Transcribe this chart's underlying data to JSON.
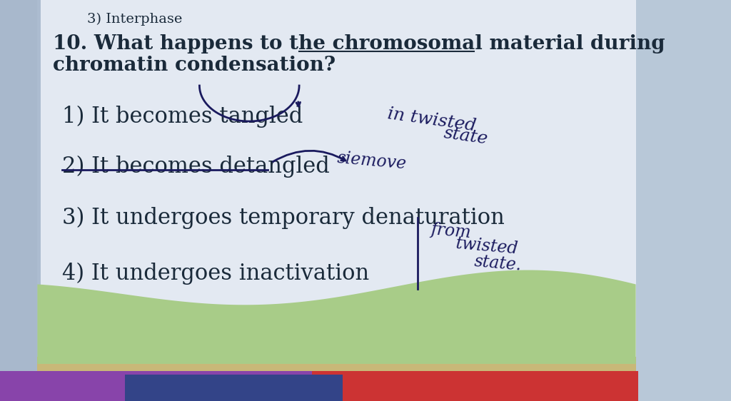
{
  "bg_color": "#b8c8d8",
  "page_color": "#dde5ee",
  "page_color2": "#e8edf4",
  "left_strip_color": "#a8b8cc",
  "text_color": "#1a2a3a",
  "title": "3) Interphase",
  "q_line1": "10. What happens to the chromosomal material during",
  "q_line2": "chromatin condensation?",
  "options": [
    "1) It becomes tangled",
    "2) It becomes detangled",
    "3) It undergoes temporary denaturation",
    "4) It undergoes inactivation"
  ],
  "green_color": "#a8cc88",
  "tan_color": "#c8b878",
  "fabric_colors": [
    "#cc4444",
    "#4444aa",
    "#884422"
  ],
  "hw_color": "#1a1a5e",
  "title_fontsize": 14,
  "q_fontsize": 20,
  "opt_fontsize": 22
}
